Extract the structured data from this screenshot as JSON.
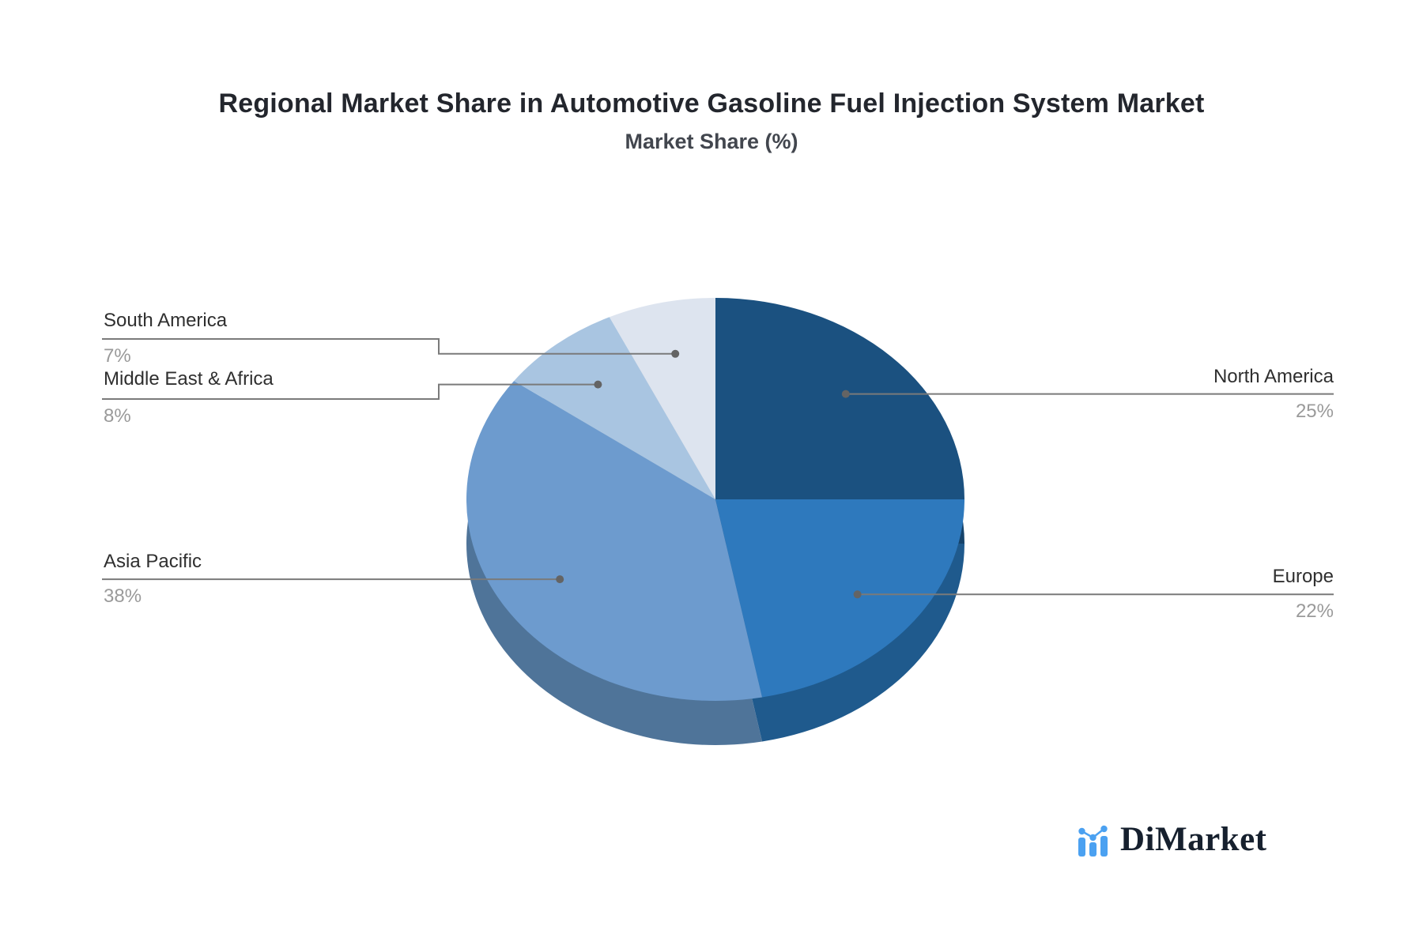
{
  "title": "Regional Market Share in Automotive Gasoline Fuel Injection System Market",
  "subtitle": "Market Share (%)",
  "brand": {
    "name": "DiMarket",
    "icon": "bar-line-chart-icon",
    "icon_color": "#4ba1f1",
    "text_color": "#16202e"
  },
  "chart_data": {
    "type": "pie",
    "title": "Regional Market Share in Automotive Gasoline Fuel Injection System Market",
    "subtitle": "Market Share (%)",
    "unit": "%",
    "style": "3d-pie",
    "start_angle_deg": 0,
    "direction": "clockwise",
    "legend_position": "callout-labels",
    "slices": [
      {
        "label": "North America",
        "value": 25,
        "color": "#1b5180",
        "side_color": "#15436b",
        "label_side": "right"
      },
      {
        "label": "Europe",
        "value": 22,
        "color": "#2e79bd",
        "side_color": "#1f5a8d",
        "label_side": "right"
      },
      {
        "label": "Asia Pacific",
        "value": 38,
        "color": "#6d9bce",
        "side_color": "#4f7499",
        "label_side": "left"
      },
      {
        "label": "Middle East & Africa",
        "value": 8,
        "color": "#a9c5e1",
        "side_color": "#87a6c5",
        "label_side": "left"
      },
      {
        "label": "South America",
        "value": 7,
        "color": "#dde4ef",
        "side_color": "#b9c4d4",
        "label_side": "left"
      }
    ],
    "callout_line_color": "#7a7a7a",
    "callout_dot_color": "#646464",
    "label_text_color": "#2f2f2f",
    "percent_text_color": "#9a9a9a"
  }
}
